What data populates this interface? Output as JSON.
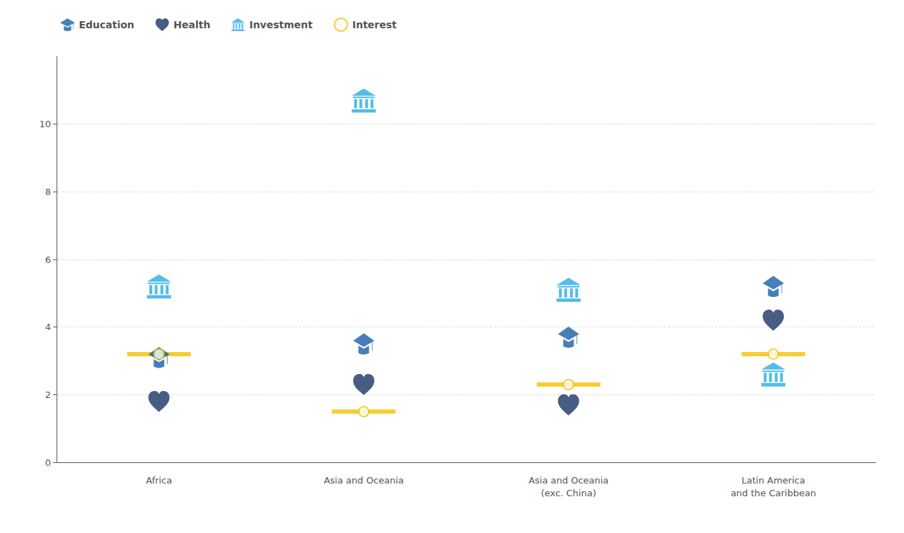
{
  "chart_data": {
    "type": "scatter",
    "categories": [
      "Africa",
      "Asia and Oceania",
      "Asia and Oceania\n(exc. China)",
      "Latin America\nand the Caribbean"
    ],
    "series": [
      {
        "name": "Education",
        "color": "#1a5fa8",
        "marker": "graduation_cap",
        "values": [
          3.1,
          3.5,
          3.7,
          5.2
        ]
      },
      {
        "name": "Health",
        "color": "#1a3564",
        "marker": "heart",
        "values": [
          1.8,
          2.3,
          1.7,
          4.2
        ]
      },
      {
        "name": "Investment",
        "color": "#29abe2",
        "marker": "bank",
        "values": [
          5.2,
          10.7,
          5.1,
          2.6
        ]
      },
      {
        "name": "Interest",
        "color": "#f5c000",
        "marker": "circle",
        "values": [
          3.2,
          1.5,
          2.3,
          3.2
        ]
      }
    ],
    "ylim": [
      0,
      12
    ],
    "yticks": [
      0,
      2,
      4,
      6,
      8,
      10
    ],
    "grid": true,
    "legend": "upper left"
  }
}
